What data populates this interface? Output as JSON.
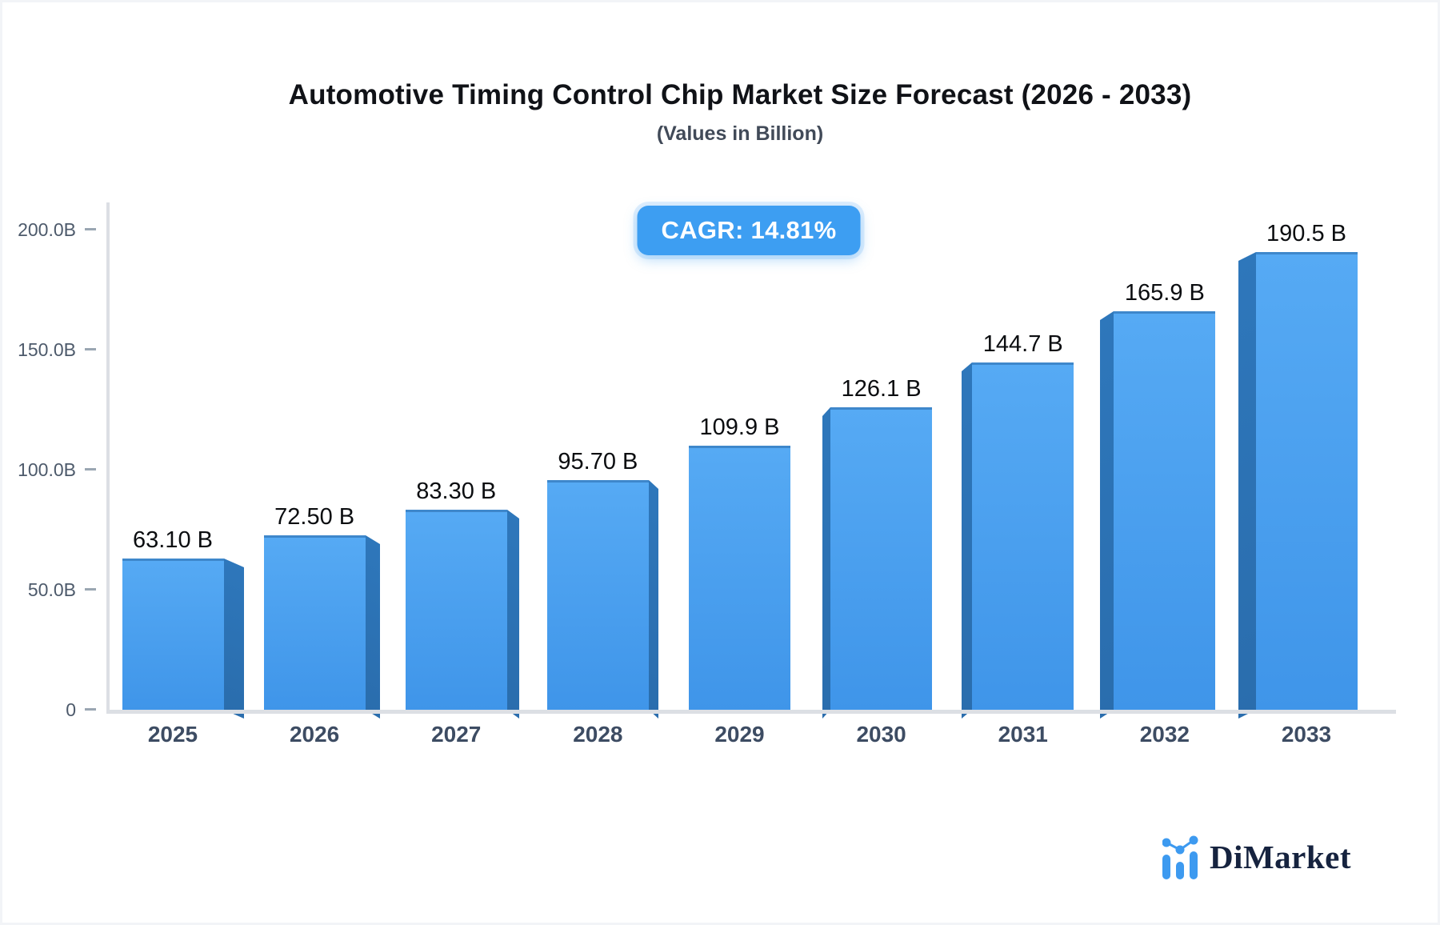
{
  "badge": {
    "label": "CAGR: 14.81%"
  },
  "brand": {
    "name": "DiMarket",
    "icon": "mini-bar-line-chart-icon"
  },
  "chart_data": {
    "type": "bar",
    "title": "Automotive Timing Control Chip Market Size Forecast (2026 - 2033)",
    "subtitle": "(Values in Billion)",
    "unit": "Billion",
    "categories": [
      "2025",
      "2026",
      "2027",
      "2028",
      "2029",
      "2030",
      "2031",
      "2032",
      "2033"
    ],
    "values": [
      63.1,
      72.5,
      83.3,
      95.7,
      109.9,
      126.1,
      144.7,
      165.9,
      190.5
    ],
    "value_labels": [
      "63.10 B",
      "72.50 B",
      "83.30 B",
      "95.70 B",
      "109.9 B",
      "126.1 B",
      "144.7 B",
      "165.9 B",
      "190.5 B"
    ],
    "xlabel": "",
    "ylabel": "",
    "ylim": [
      0,
      200
    ],
    "y_ticks": [
      {
        "value": 0,
        "label": "0"
      },
      {
        "value": 50,
        "label": "50.0B"
      },
      {
        "value": 100,
        "label": "100.0B"
      },
      {
        "value": 150,
        "label": "150.0B"
      },
      {
        "value": 200,
        "label": "200.0B"
      }
    ],
    "grid": false,
    "legend": "none",
    "bar_style": "3d-perspective-blue"
  },
  "colors": {
    "bar_face_top": "#56aaf4",
    "bar_face_bottom": "#3f95e9",
    "bar_side": "#2e77bb",
    "badge_bg": "#3d9ef2",
    "badge_text": "#ffffff",
    "axis_line": "#dcdfe4",
    "title_text": "#101217",
    "subtitle_text": "#414a58",
    "tick_text": "#4d5a6b",
    "x_label_text": "#3d4c63",
    "value_label_text": "#0b0d10",
    "brand_text": "#16233f",
    "brand_icon": "#3d9af0"
  }
}
